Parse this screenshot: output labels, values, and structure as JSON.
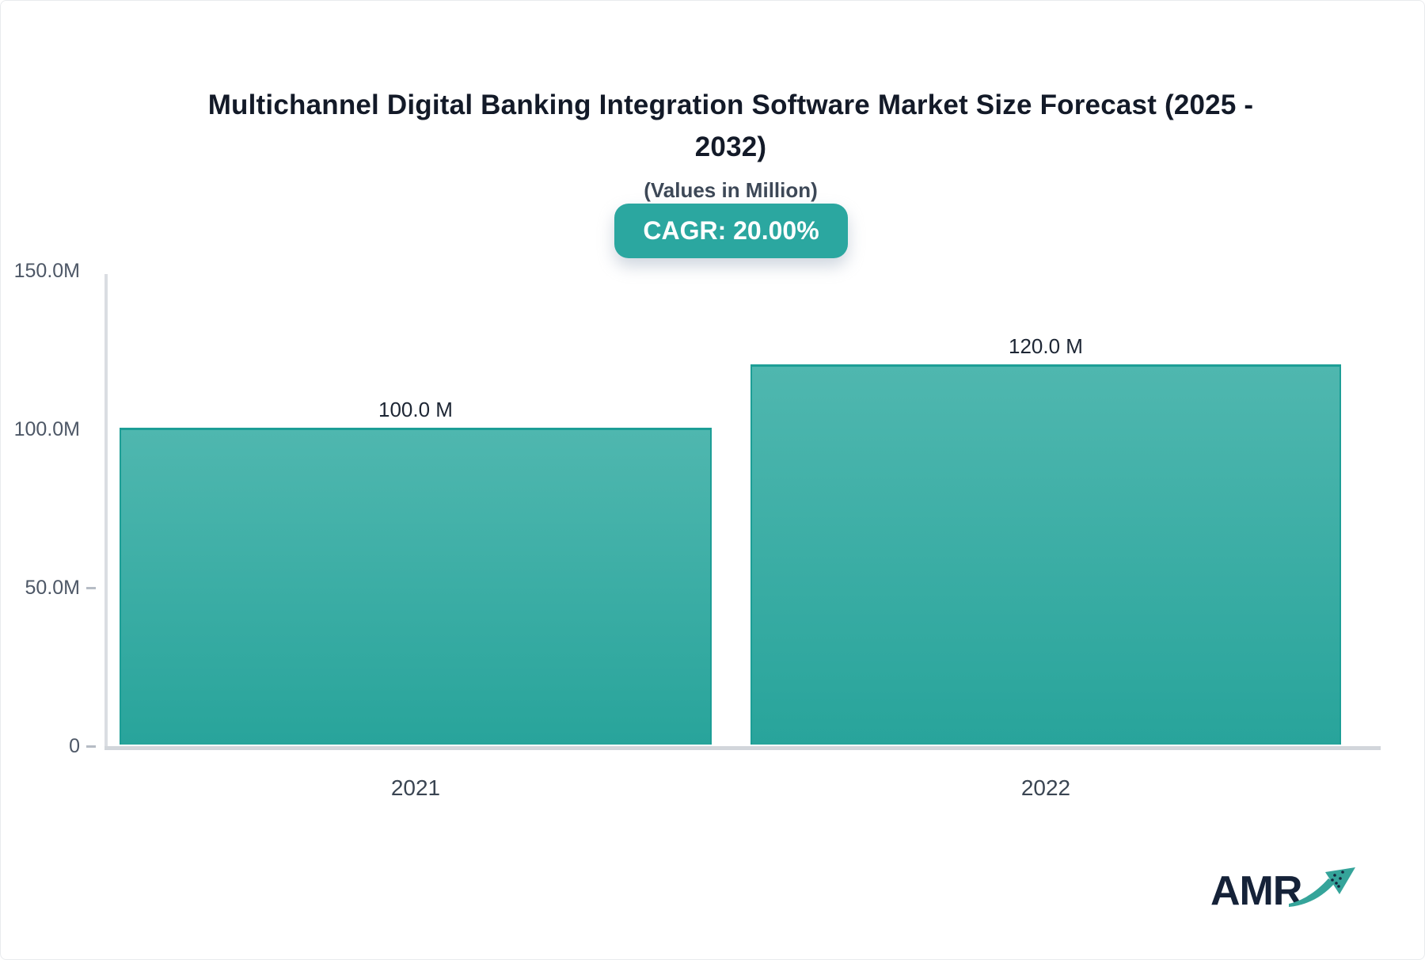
{
  "page": {
    "background": "#ffffff",
    "border_color": "#e9ebee"
  },
  "header": {
    "title": "Multichannel Digital Banking Integration Software Market Size Forecast (2025 - 2032)",
    "title_line1": "Multichannel Digital Banking Integration Software Market Size Forecast (2025 -",
    "title_line2": "2032)",
    "subtitle": "(Values in Million)",
    "cagr_badge": "CAGR: 20.00%"
  },
  "axis": {
    "y_ticks": [
      {
        "label": "150.0M",
        "value": 150,
        "dash": false
      },
      {
        "label": "100.0M",
        "value": 100,
        "dash": false
      },
      {
        "label": "50.0M",
        "value": 50,
        "dash": true
      },
      {
        "label": "0",
        "value": 0,
        "dash": true
      }
    ]
  },
  "chart_data": {
    "type": "bar",
    "title": "Multichannel Digital Banking Integration Software Market Size Forecast (2025 - 2032)",
    "subtitle": "(Values in Million)",
    "cagr_label": "CAGR: 20.00%",
    "cagr_percent": 20.0,
    "unit": "Million (M)",
    "categories": [
      "2021",
      "2022"
    ],
    "values": [
      100.0,
      120.0
    ],
    "value_labels": [
      "100.0 M",
      "120.0 M"
    ],
    "ylim": [
      0,
      150
    ],
    "ytick_values": [
      150,
      100,
      50,
      0
    ],
    "ytick_labels": [
      "150.0M",
      "100.0M",
      "50.0M",
      "0"
    ],
    "grid": false,
    "legend": false,
    "bar_gradient_top": "#4fb7af",
    "bar_gradient_bottom": "#28a49b",
    "bar_border_color": "#1d9e96"
  },
  "colors": {
    "accent_teal": "#2ba7a0",
    "title_text": "#131a28",
    "subtitle_text": "#3d4857",
    "axis_label_text": "#4d5766",
    "axis_line": "#dadde2",
    "badge_text": "#ffffff"
  },
  "logo": {
    "text": "AMR",
    "text_color": "#152238",
    "arrow_color": "#35a49a"
  }
}
